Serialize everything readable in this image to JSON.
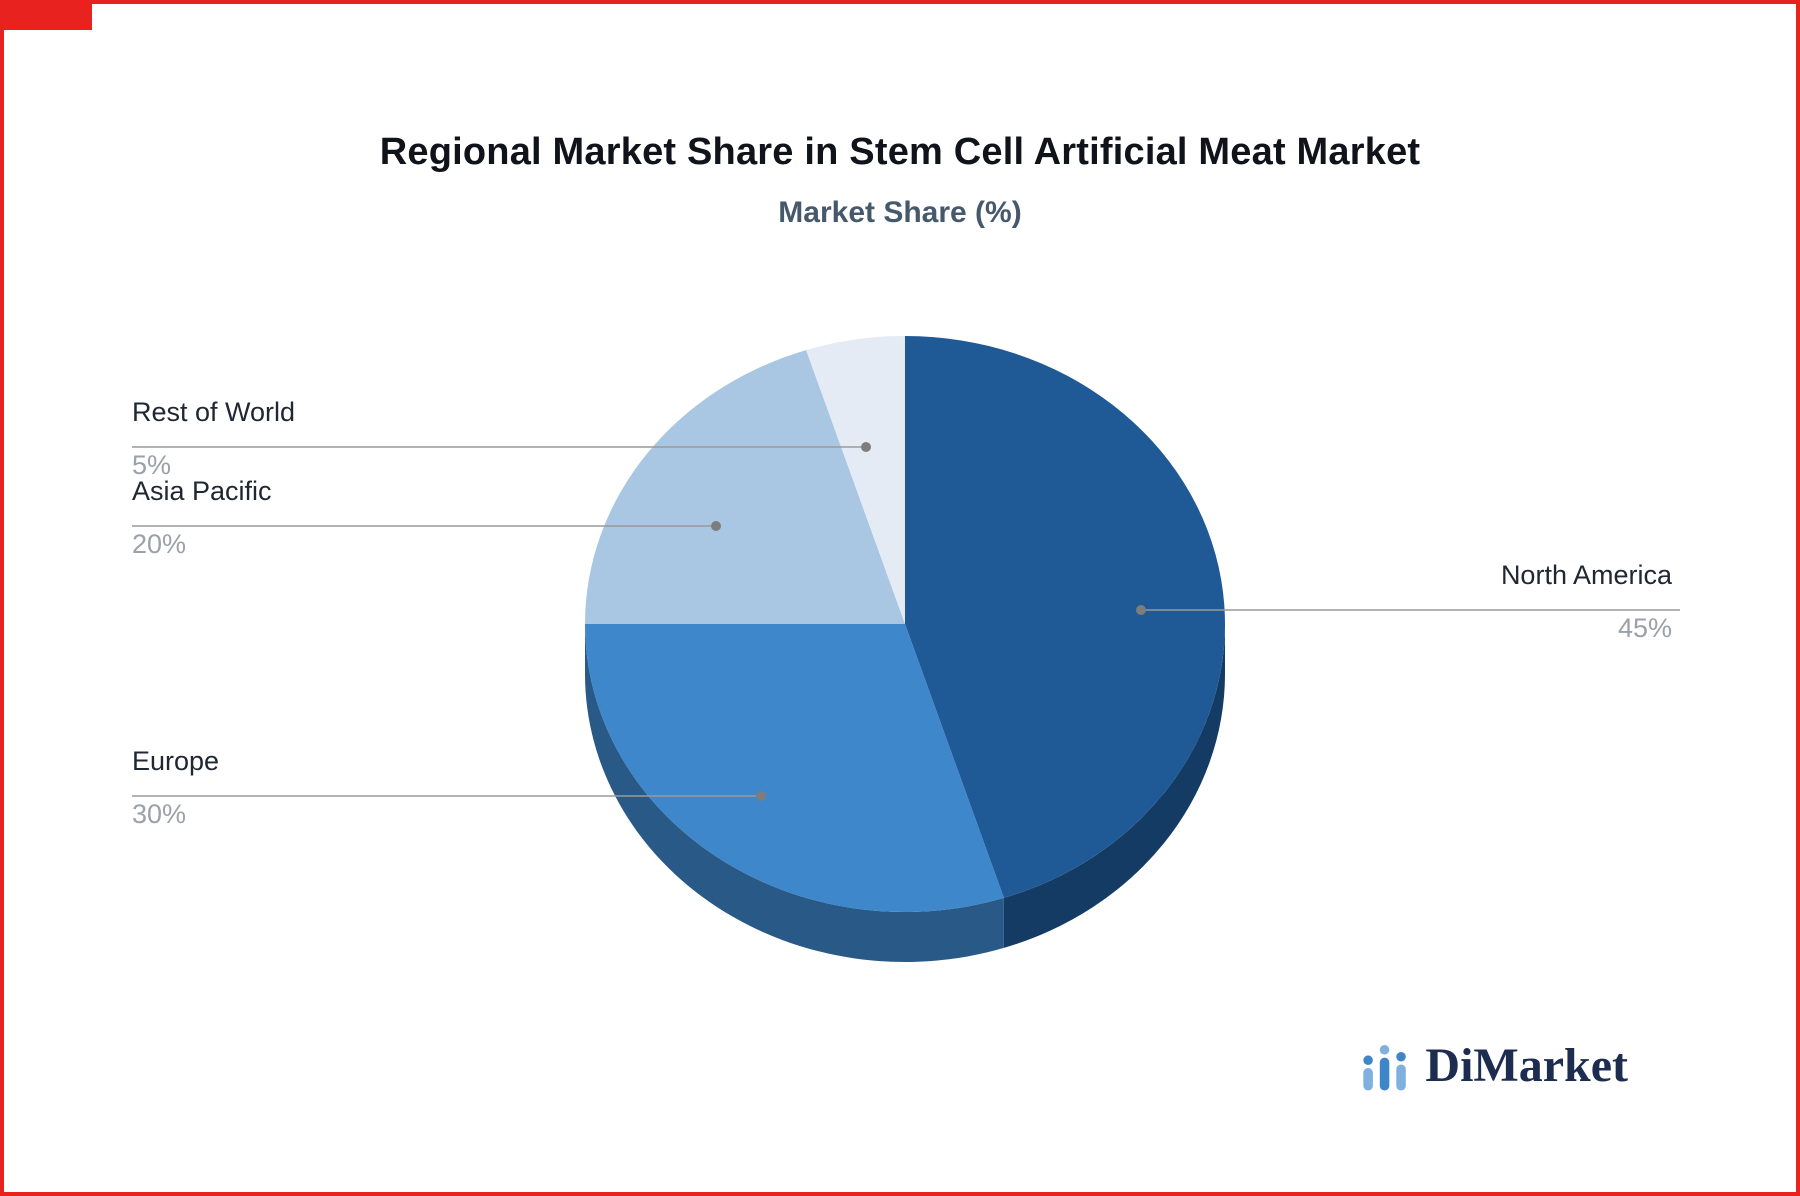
{
  "frame": {
    "accent_color": "#e8231f",
    "background": "#ffffff"
  },
  "chart_data": {
    "type": "pie",
    "title": "Regional Market Share in Stem Cell Artificial Meat Market",
    "subtitle": "Market Share (%)",
    "labels": [
      "North America",
      "Europe",
      "Asia Pacific",
      "Rest of World"
    ],
    "values": [
      45,
      30,
      20,
      5
    ],
    "percent_labels": [
      "45%",
      "30%",
      "20%",
      "5%"
    ],
    "colors": [
      "#1f5a96",
      "#3e87cb",
      "#a9c6e2",
      "#e4ebf4"
    ],
    "start_angle": "top",
    "direction": "clockwise",
    "style": "3d",
    "legend_position": "callout-labels",
    "callout_line_color": "#999999",
    "callout_dot_color": "#7d7d7d"
  },
  "branding": {
    "logo_text": "DiMarket",
    "logo_icon": "bar-chart-icon",
    "logo_text_color": "#1d2d50",
    "logo_icon_color": "#3f86c8"
  }
}
